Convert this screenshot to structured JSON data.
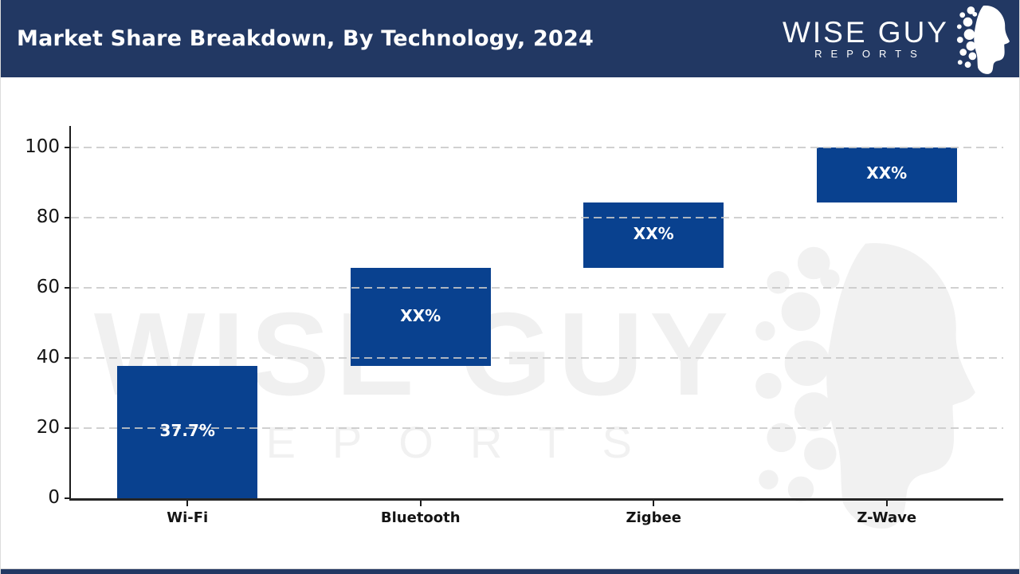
{
  "header": {
    "title": "Market Share Breakdown, By Technology, 2024",
    "logo": {
      "line1": "WISE GUY",
      "line2": "REPORTS"
    }
  },
  "watermark": {
    "line1": "WISE GUY",
    "line2": "REPORTS"
  },
  "chart_data": {
    "type": "bar",
    "subtype": "waterfall",
    "title": "Market Share Breakdown, By Technology, 2024",
    "categories": [
      "Wi-Fi",
      "Bluetooth",
      "Zigbee",
      "Z-Wave"
    ],
    "segments": [
      {
        "category": "Wi-Fi",
        "start": 0,
        "end": 37.7,
        "label": "37.7%"
      },
      {
        "category": "Bluetooth",
        "start": 37.7,
        "end": 65.7,
        "label": "XX%"
      },
      {
        "category": "Zigbee",
        "start": 65.7,
        "end": 84.4,
        "label": "XX%"
      },
      {
        "category": "Z-Wave",
        "start": 84.4,
        "end": 100,
        "label": "XX%"
      }
    ],
    "values": [
      37.7,
      28.0,
      18.7,
      15.6
    ],
    "bar_labels": [
      "37.7%",
      "XX%",
      "XX%",
      "XX%"
    ],
    "xlabel": "",
    "ylabel": "",
    "ylim": [
      0,
      100
    ],
    "yticks": [
      0,
      20,
      40,
      60,
      80,
      100
    ],
    "grid": "horizontal dashed",
    "legend": "none",
    "bar_color": "#09418f",
    "label_color": "#ffffff"
  },
  "colors": {
    "header_bg": "#223863",
    "footer_bg": "#223863",
    "bar": "#09418f",
    "gridline": "#c9c9c9",
    "axis": "#1c1c1c",
    "watermark": "#f0f0f0"
  }
}
